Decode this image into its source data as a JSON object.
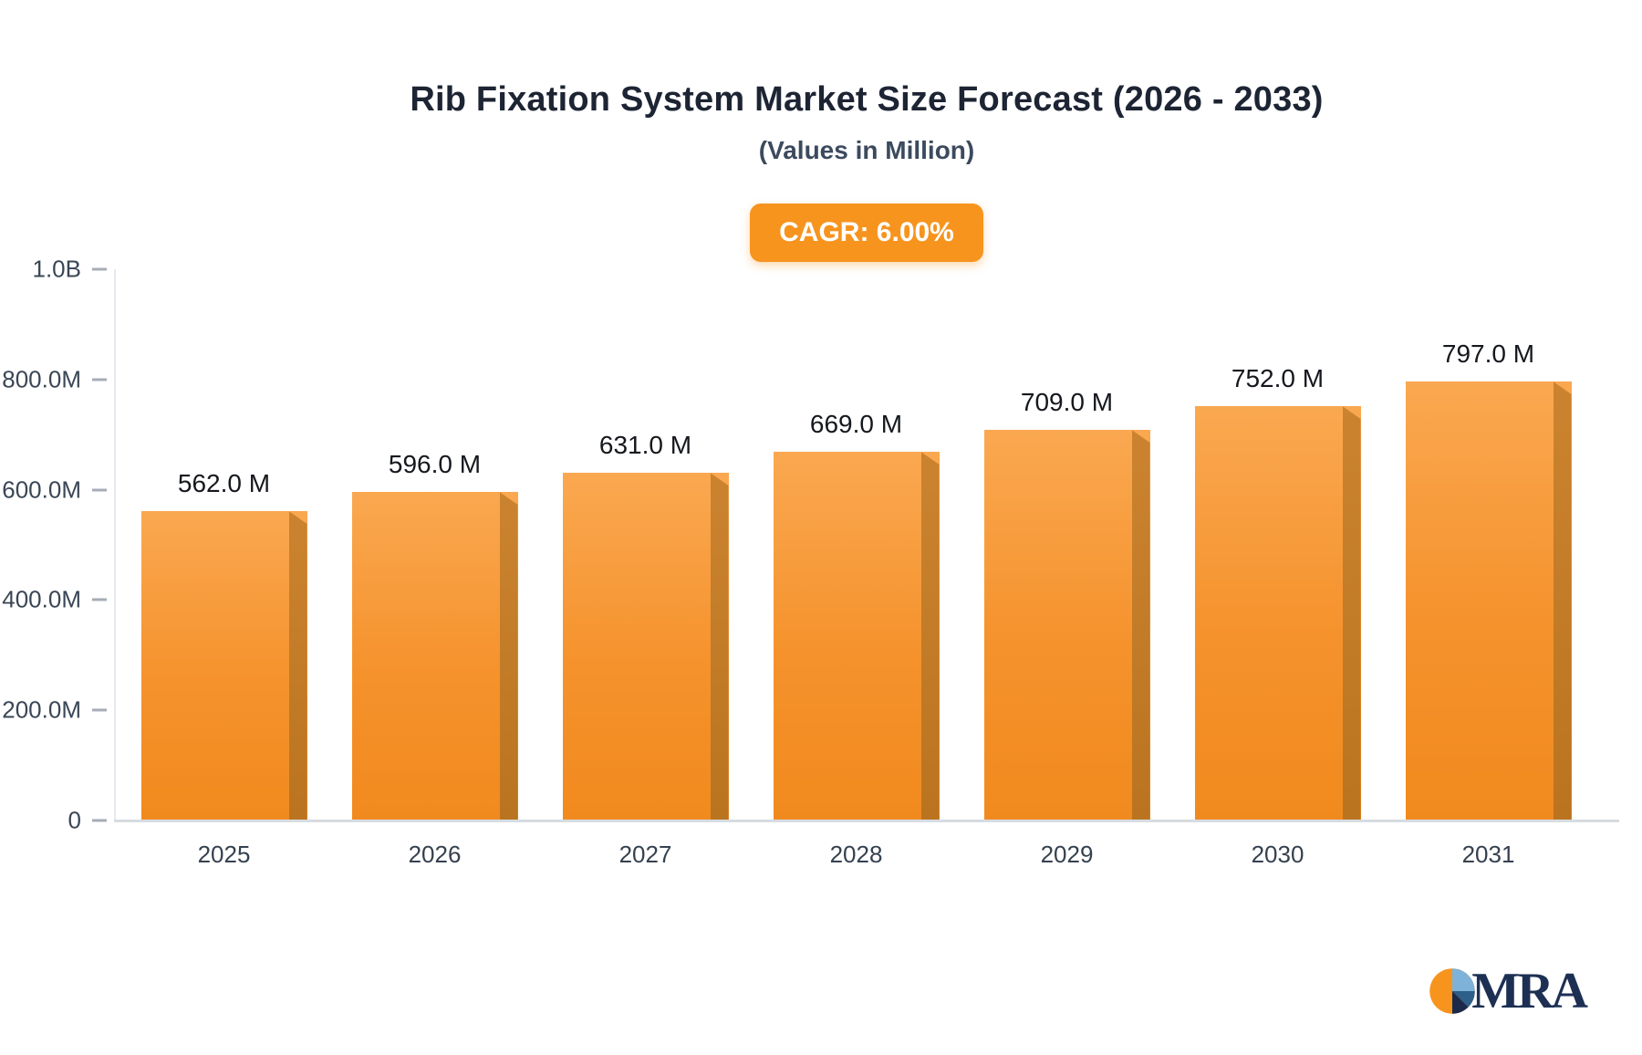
{
  "chart_data": {
    "type": "bar",
    "title": "Rib Fixation System Market Size Forecast (2026 - 2033)",
    "subtitle": "(Values in Million)",
    "badge": "CAGR: 6.00%",
    "categories": [
      "2025",
      "2026",
      "2027",
      "2028",
      "2029",
      "2030",
      "2031"
    ],
    "values": [
      562,
      596,
      631,
      669,
      709,
      752,
      797
    ],
    "value_labels": [
      "562.0 M",
      "596.0 M",
      "631.0 M",
      "669.0 M",
      "709.0 M",
      "752.0 M",
      "797.0 M"
    ],
    "unit": "Million",
    "xlabel": "",
    "ylabel": "",
    "ylim": [
      0,
      1000
    ],
    "y_ticks": [
      {
        "label": "1.0B",
        "value": 1000
      },
      {
        "label": "800.0M",
        "value": 800
      },
      {
        "label": "600.0M",
        "value": 600
      },
      {
        "label": "400.0M",
        "value": 400
      },
      {
        "label": "200.0M",
        "value": 200
      },
      {
        "label": "0",
        "value": 0
      }
    ],
    "grid": false,
    "legend": false,
    "colors": {
      "bar_main_light": "#FAA851",
      "bar_main_dark": "#F18A1E",
      "bar_side": "#BA7420",
      "badge_bg": "#F7941E",
      "badge_text": "#FFFFFF",
      "axis_text": "#3A4656",
      "title_text": "#1D2433"
    }
  },
  "logo": {
    "text": "MRA"
  }
}
